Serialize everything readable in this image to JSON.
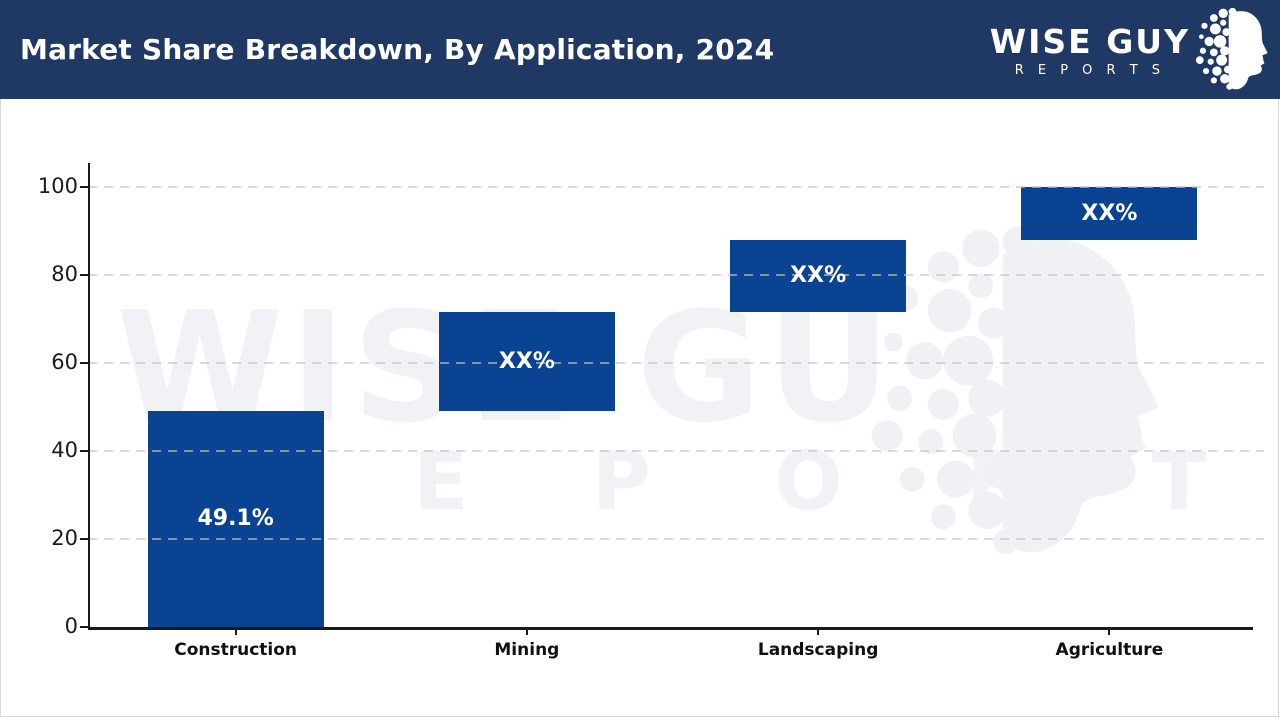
{
  "header": {
    "title": "Market Share Breakdown, By Application, 2024",
    "logo": {
      "primary": "WISE GUY",
      "secondary": "R E P O R T S"
    }
  },
  "watermark": {
    "line1": "WISE GU",
    "line2": "R E P O R T S"
  },
  "chart_data": {
    "type": "bar",
    "variant": "waterfall",
    "title": "Market Share Breakdown, By Application, 2024",
    "categories": [
      "Construction",
      "Mining",
      "Landscaping",
      "Agriculture"
    ],
    "segments": [
      {
        "category": "Construction",
        "start": 0,
        "end": 49.1,
        "value": 49.1,
        "label": "49.1%"
      },
      {
        "category": "Mining",
        "start": 49.1,
        "end": 71.6,
        "value": 22.5,
        "label": "XX%"
      },
      {
        "category": "Landscaping",
        "start": 71.6,
        "end": 88.0,
        "value": 16.4,
        "label": "XX%"
      },
      {
        "category": "Agriculture",
        "start": 88.0,
        "end": 100.0,
        "value": 12.0,
        "label": "XX%"
      }
    ],
    "yticks": [
      0,
      20,
      40,
      60,
      80,
      100
    ],
    "ylim": [
      0,
      105
    ],
    "xlabel": "",
    "ylabel": "",
    "grid": "horizontal-dashed",
    "legend": "none",
    "bar_color": "#0a4392",
    "bar_label_color": "#ffffff"
  },
  "colors": {
    "header_bg": "#1f3864",
    "bar": "#0a4392",
    "axis": "#1a1a1a",
    "grid": "#c3c3c3",
    "watermark": "#f1f2f5",
    "page_bg": "#ffffff",
    "frame_border": "#d9d9d9"
  }
}
